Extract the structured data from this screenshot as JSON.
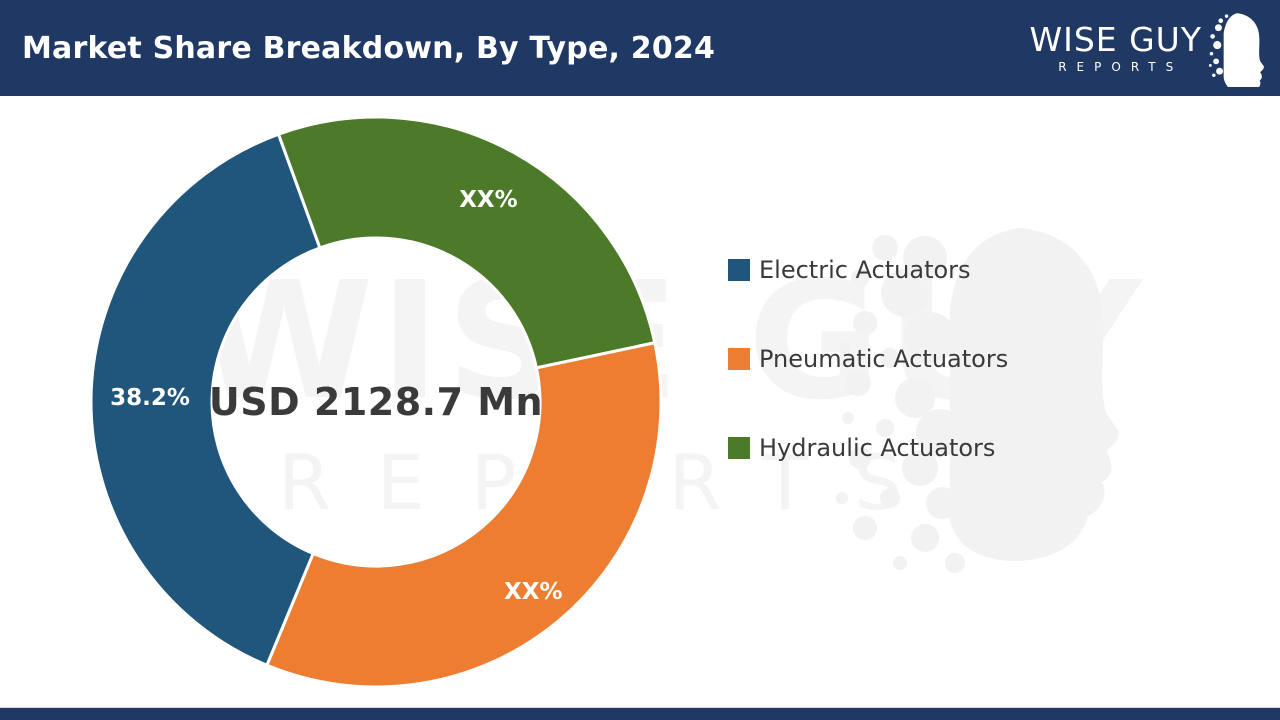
{
  "header": {
    "title": "Market Share Breakdown, By Type, 2024",
    "logo": {
      "brand": "WISE GUY",
      "sub": "REPORTS"
    }
  },
  "watermark": {
    "brand": "WISE GUY",
    "sub": "REPORTS"
  },
  "colors": {
    "header_bg": "#1F3864",
    "footer_bg": "#1F3864",
    "text_dark": "#3A3A3A",
    "slice_blue": "#20567C",
    "slice_orange": "#ED7D31",
    "slice_green": "#4C7A28"
  },
  "chart_data": {
    "type": "donut",
    "title": "Market Share Breakdown, By Type, 2024",
    "center_label": "USD 2128.7 Mn",
    "legend_position": "right",
    "slices": [
      {
        "name": "Electric Actuators",
        "label": "38.2%",
        "color": "#20567C",
        "start_deg": 202.5,
        "end_deg": 340.0,
        "label_r": 226
      },
      {
        "name": "Hydraulic Actuators",
        "label": "XX%",
        "color": "#4C7A28",
        "start_deg": -20.0,
        "end_deg": 78.0,
        "label_r": 232
      },
      {
        "name": "Pneumatic Actuators",
        "label": "XX%",
        "color": "#ED7D31",
        "start_deg": 78.0,
        "end_deg": 202.5,
        "label_r": 246
      }
    ],
    "legend": [
      {
        "label": "Electric Actuators",
        "color": "#20567C"
      },
      {
        "label": "Pneumatic Actuators",
        "color": "#ED7D31"
      },
      {
        "label": "Hydraulic Actuators",
        "color": "#4C7A28"
      }
    ]
  }
}
